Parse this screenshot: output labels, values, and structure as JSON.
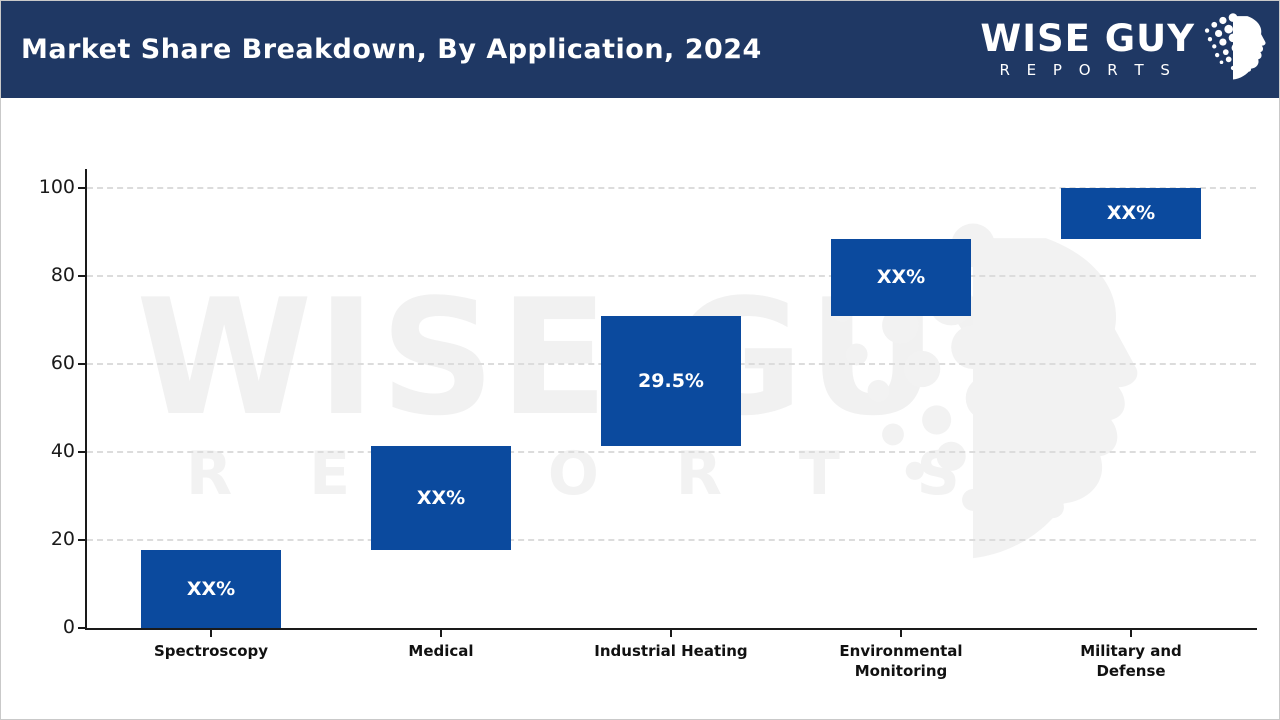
{
  "header": {
    "title": "Market Share Breakdown, By Application, 2024",
    "logo": {
      "name": "WISE GUY",
      "tagline": "R E P O R T S"
    }
  },
  "watermark": {
    "line1": "WISE GUY",
    "line2": "R E P O R T S"
  },
  "colors": {
    "header_bg": "#1f3864",
    "bar_fill": "#0b4a9e",
    "bar_label_text": "#ffffff",
    "gridline": "#dcdcdc",
    "axis": "#1a1a1a",
    "watermark": "#f1f1f1"
  },
  "icons": {
    "logo_face": "dotted-profile-face-icon"
  },
  "chart_data": {
    "type": "bar",
    "subtype": "waterfall",
    "title": "Market Share Breakdown, By Application, 2024",
    "categories": [
      "Spectroscopy",
      "Medical",
      "Industrial Heating",
      "Environmental Monitoring",
      "Military and Defense"
    ],
    "category_label_lines": [
      [
        "Spectroscopy"
      ],
      [
        "Medical"
      ],
      [
        "Industrial Heating"
      ],
      [
        "Environmental",
        "Monitoring"
      ],
      [
        "Military and",
        "Defense"
      ]
    ],
    "segments": [
      {
        "category": "Spectroscopy",
        "start": 0,
        "end": 17.7,
        "height": 17.7,
        "label": "XX%"
      },
      {
        "category": "Medical",
        "start": 17.7,
        "end": 41.4,
        "height": 23.7,
        "label": "XX%"
      },
      {
        "category": "Industrial Heating",
        "start": 41.4,
        "end": 70.9,
        "height": 29.5,
        "label": "29.5%"
      },
      {
        "category": "Environmental Monitoring",
        "start": 70.9,
        "end": 88.5,
        "height": 17.6,
        "label": "XX%"
      },
      {
        "category": "Military and Defense",
        "start": 88.5,
        "end": 100,
        "height": 11.5,
        "label": "XX%"
      }
    ],
    "ylim": [
      0,
      100
    ],
    "yticks": [
      0,
      20,
      40,
      60,
      80,
      100
    ],
    "xlabel": "",
    "ylabel": "",
    "grid": "horizontal-dashed",
    "legend": "none"
  }
}
